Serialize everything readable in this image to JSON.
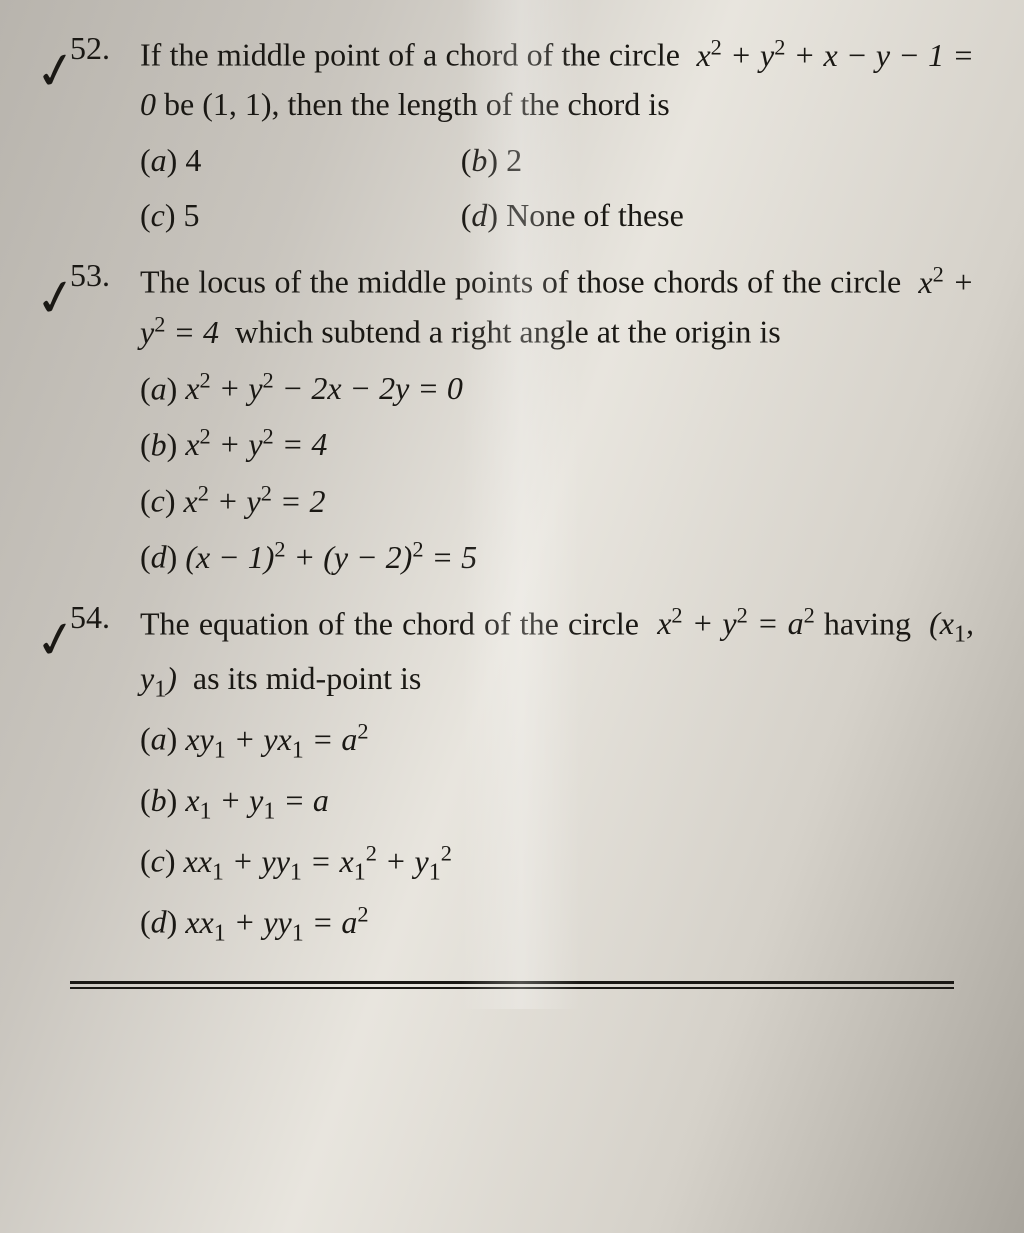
{
  "colors": {
    "text": "#1a1814",
    "bg_light": "#e8e5de",
    "bg_mid": "#c9c5be",
    "bg_dark": "#a8a49c",
    "rule": "#1a1814"
  },
  "typography": {
    "body_fontsize_pt": 24,
    "qnum_fontsize_pt": 24,
    "tick_fontsize_pt": 36,
    "font_family": "Georgia / Times serif",
    "italic_math": true
  },
  "tick_glyph": "✓",
  "questions": [
    {
      "number": "52.",
      "ticked": true,
      "stem_lines": [
        "If the middle point of a chord of the circle",
        "be (1, 1), then the length of the chord",
        "is"
      ],
      "option_layout": "two_col",
      "options": {
        "a": "4",
        "b": "2",
        "c": "5",
        "d": "None of these"
      }
    },
    {
      "number": "53.",
      "ticked": true,
      "stem_lines": [
        "The locus of the middle points of those chords of the",
        "circle",
        "which subtend a right angle at the",
        "origin is"
      ],
      "option_layout": "one_col",
      "options": {
        "a": "x² + y² − 2x − 2y = 0",
        "b": "x² + y² = 4",
        "c": "x² + y² = 2",
        "d": "(x − 1)² + (y − 2)² = 5"
      }
    },
    {
      "number": "54.",
      "ticked": true,
      "stem_lines": [
        "The equation of the chord of the circle",
        "having",
        "as its mid-point is"
      ],
      "option_layout": "one_col",
      "options": {
        "a": "xy₁ + yx₁ = a²",
        "b": "x₁ + y₁ = a",
        "c": "xx₁ + yy₁ = x₁² + y₁²",
        "d": "xx₁ + yy₁ = a²"
      }
    }
  ]
}
